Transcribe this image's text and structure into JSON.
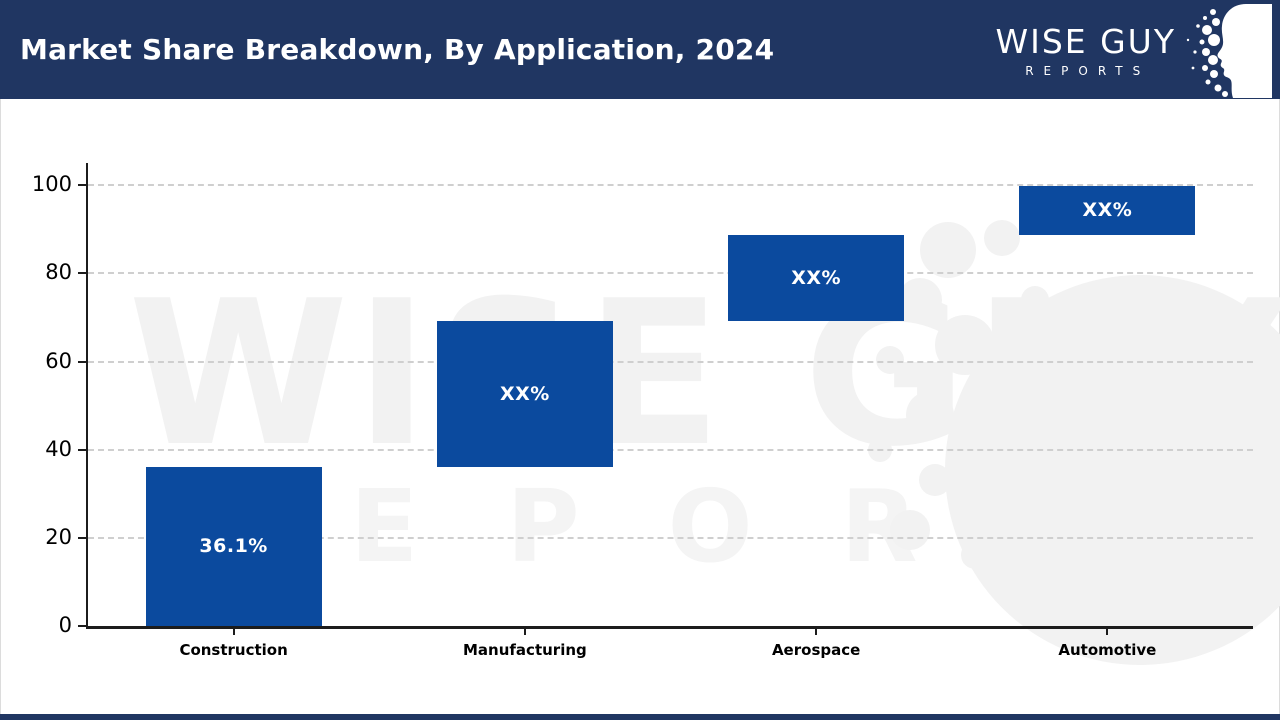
{
  "header": {
    "title": "Market Share Breakdown, By Application, 2024",
    "bg_color": "#203662",
    "logo": {
      "line1": "WISE GUY",
      "line2": "REPORTS"
    }
  },
  "watermark": {
    "line1": "WISE GUY",
    "line2": "REPORTS"
  },
  "chart_data": {
    "type": "bar",
    "variant": "waterfall",
    "title": "Market Share Breakdown, By Application, 2024",
    "categories": [
      "Construction",
      "Manufacturing",
      "Aerospace",
      "Automotive"
    ],
    "segments": [
      {
        "category": "Construction",
        "start": 0,
        "end": 36.1,
        "label": "36.1%"
      },
      {
        "category": "Manufacturing",
        "start": 36.1,
        "end": 69.2,
        "label": "XX%"
      },
      {
        "category": "Aerospace",
        "start": 69.2,
        "end": 88.8,
        "label": "XX%"
      },
      {
        "category": "Automotive",
        "start": 88.8,
        "end": 99.8,
        "label": "XX%"
      }
    ],
    "yticks": [
      0,
      20,
      40,
      60,
      80,
      100
    ],
    "ylim": [
      0,
      105
    ],
    "xlabel": "",
    "ylabel": "",
    "grid": "horizontal-dashed",
    "legend": "none",
    "bar_color": "#0b4a9e",
    "bar_label_color": "#ffffff",
    "axis_color": "#1c1c1c"
  }
}
